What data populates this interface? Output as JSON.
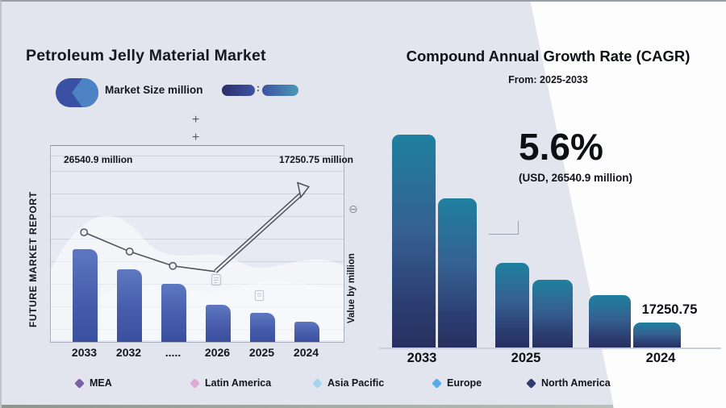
{
  "page": {
    "background_color": "#e2e5ee",
    "accent_navy": "#3a50a5",
    "accent_teal": "#1f809f"
  },
  "left": {
    "title": "Petroleum Jelly Material Market",
    "market_size_label": "Market Size million",
    "ratio_colon": ":",
    "vertical_watermark": "FUTURE MARKET REPORT",
    "value_axis_label": "Value by million",
    "plus_top": "+",
    "plus_bottom": "+",
    "minus_icon": "⊖",
    "start_value_label": "26540.9 million",
    "end_value_label": "17250.75 million"
  },
  "right": {
    "title": "Compound Annual Growth Rate (CAGR)",
    "subtitle": "From: 2025-2033",
    "cagr_value": "5.6%",
    "cagr_detail": "(USD, 26540.9 million)",
    "value_label": "17250.75"
  },
  "legend": {
    "items": [
      {
        "label": "MEA",
        "color": "#7e60a8"
      },
      {
        "label": "Latin America",
        "color": "#d9abd5"
      },
      {
        "label": "Asia Pacific",
        "color": "#a9d4ee"
      },
      {
        "label": "Europe",
        "color": "#57ace4"
      },
      {
        "label": "North America",
        "color": "#2d3d6f"
      }
    ]
  },
  "chart_data": [
    {
      "type": "bar",
      "title": "Petroleum Jelly Material Market",
      "ylabel": "Value by million",
      "xlabel": "",
      "categories": [
        "2033",
        "2032",
        ".....",
        "2026",
        "2025",
        "2024"
      ],
      "series": [
        {
          "name": "Market Size million (relative bar height %)",
          "values": [
            100,
            78,
            63,
            40,
            31,
            22
          ]
        }
      ],
      "known_values_million": {
        "2033": 26540.9,
        "2024": 17250.75
      },
      "annotations": [
        "26540.9 million",
        "17250.75 million"
      ],
      "grid": true,
      "legend_position": "none",
      "overlay": "declining dotted trend line with markers, then outlined arrow rising to top-right"
    },
    {
      "type": "bar",
      "title": "Compound Annual Growth Rate (CAGR)",
      "subtitle": "From: 2025-2033",
      "cagr": "5.6%",
      "cagr_note": "(USD, 26540.9 million)",
      "categories": [
        "2033",
        "2025",
        "2024"
      ],
      "series": [
        {
          "name": "bar-a (relative height %)",
          "values": [
            100,
            40,
            25
          ]
        },
        {
          "name": "bar-b (relative height %)",
          "values": [
            70,
            32,
            12
          ]
        }
      ],
      "known_values_million": {
        "2033": 26540.9,
        "2024": 17250.75
      },
      "data_labels": {
        "2024": "17250.75"
      },
      "grid": false,
      "legend_position": "bottom"
    }
  ]
}
